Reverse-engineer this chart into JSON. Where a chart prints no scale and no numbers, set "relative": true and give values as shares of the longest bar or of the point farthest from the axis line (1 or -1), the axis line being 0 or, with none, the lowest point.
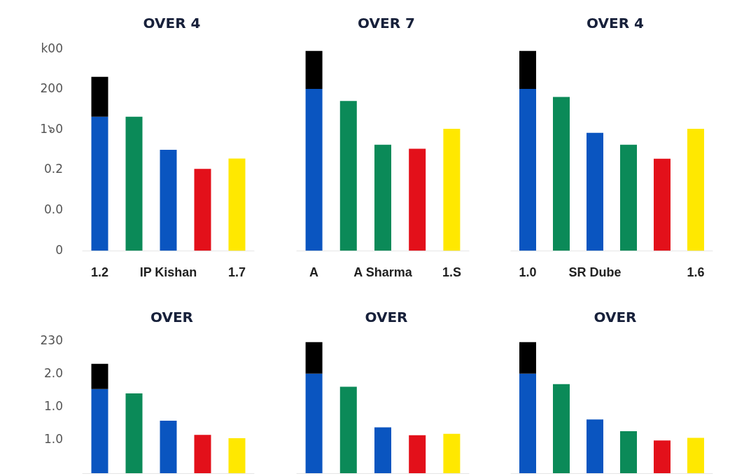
{
  "chart_data": [
    {
      "type": "bar",
      "title": "OVER 4",
      "stacked": true,
      "relative": true,
      "categories": [
        "1.2",
        null,
        "IP Kishan",
        null,
        "1.7"
      ],
      "annotations": [
        "k00",
        "200",
        "1๖0",
        "0.2",
        "0.0",
        "0"
      ],
      "series": [
        {
          "colors": [
            "#0a55c0",
            "#0b8a58",
            "#0a55c0",
            "#e3101a",
            "#ffe800"
          ],
          "values": [
            0.77,
            0.77,
            0.58,
            0.47,
            0.53
          ]
        },
        {
          "color": "#000000",
          "values": [
            0.23,
            null,
            null,
            null,
            null
          ]
        }
      ]
    },
    {
      "type": "bar",
      "title": "OVER 7",
      "stacked": true,
      "relative": true,
      "categories": [
        "A",
        null,
        "A Sharma",
        null,
        "1.S"
      ],
      "series": [
        {
          "colors": [
            "#0a55c0",
            "#0b8a58",
            "#0b8a58",
            "#e3101a",
            "#ffe800"
          ],
          "values": [
            0.81,
            0.75,
            0.53,
            0.51,
            0.61
          ]
        },
        {
          "color": "#000000",
          "values": [
            0.19,
            null,
            null,
            null,
            null
          ]
        }
      ]
    },
    {
      "type": "bar",
      "title": "OVER 4",
      "stacked": true,
      "relative": true,
      "categories": [
        "1.0",
        null,
        "SR Dube",
        null,
        null,
        "1.6"
      ],
      "series": [
        {
          "colors": [
            "#0a55c0",
            "#0b8a58",
            "#0a55c0",
            "#0b8a58",
            "#e3101a",
            "#ffe800"
          ],
          "values": [
            0.81,
            0.77,
            0.59,
            0.53,
            0.46,
            0.61
          ]
        },
        {
          "color": "#000000",
          "values": [
            0.19,
            null,
            null,
            null,
            null,
            null
          ]
        }
      ]
    },
    {
      "type": "bar",
      "title": "OVER",
      "stacked": true,
      "relative": true,
      "tick_labels": "y",
      "categories": [
        null,
        null,
        null,
        null,
        null
      ],
      "annotations": [
        "230",
        "2.0",
        "1.0",
        "1.0"
      ],
      "series": [
        {
          "colors": [
            "#0a55c0",
            "#0b8a58",
            "#0a55c0",
            "#e3101a",
            "#ffe800"
          ],
          "values": [
            0.77,
            0.73,
            0.48,
            0.35,
            0.32
          ]
        },
        {
          "color": "#000000",
          "values": [
            0.23,
            null,
            null,
            null,
            null
          ]
        }
      ]
    },
    {
      "type": "bar",
      "title": "OVER",
      "stacked": true,
      "relative": true,
      "tick_labels": false,
      "categories": [
        null,
        null,
        null,
        null,
        null
      ],
      "series": [
        {
          "colors": [
            "#0a55c0",
            "#0b8a58",
            "#0a55c0",
            "#e3101a",
            "#ffe800"
          ],
          "values": [
            0.76,
            0.66,
            0.35,
            0.29,
            0.3
          ]
        },
        {
          "color": "#000000",
          "values": [
            0.24,
            null,
            null,
            null,
            null
          ]
        }
      ]
    },
    {
      "type": "bar",
      "title": "OVER",
      "stacked": true,
      "relative": true,
      "tick_labels": false,
      "categories": [
        null,
        null,
        null,
        null,
        null,
        null
      ],
      "series": [
        {
          "colors": [
            "#0a55c0",
            "#0b8a58",
            "#0a55c0",
            "#0b8a58",
            "#e3101a",
            "#ffe800"
          ],
          "values": [
            0.76,
            0.68,
            0.41,
            0.32,
            0.25,
            0.27
          ]
        },
        {
          "color": "#000000",
          "values": [
            0.24,
            null,
            null,
            null,
            null,
            null
          ]
        }
      ]
    }
  ]
}
